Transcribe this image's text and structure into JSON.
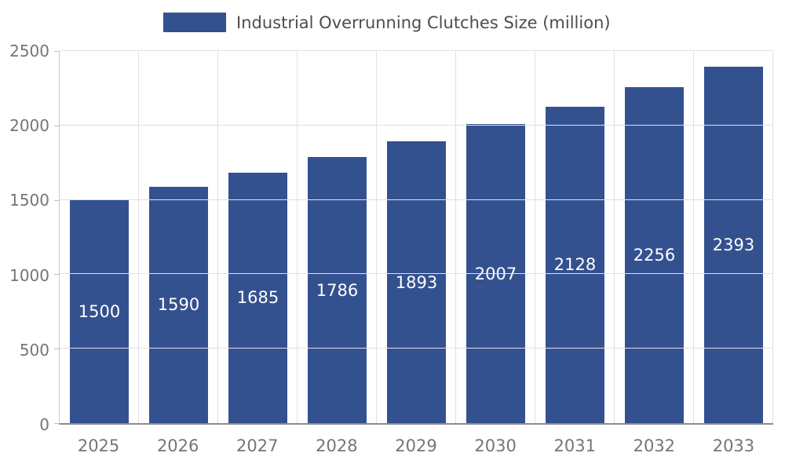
{
  "legend": {
    "label": "Industrial Overrunning Clutches Size (million)",
    "swatch_color": "#34518f"
  },
  "chart_data": {
    "type": "bar",
    "title": "Industrial Overrunning Clutches Size (million)",
    "categories": [
      "2025",
      "2026",
      "2027",
      "2028",
      "2029",
      "2030",
      "2031",
      "2032",
      "2033"
    ],
    "values": [
      1500,
      1590,
      1685,
      1786,
      1893,
      2007,
      2128,
      2256,
      2393
    ],
    "xlabel": "",
    "ylabel": "",
    "ylim": [
      0,
      2500
    ],
    "yticks": [
      0,
      500,
      1000,
      1500,
      2000,
      2500
    ],
    "bar_color": "#34518f",
    "value_label_color": "#ffffff",
    "grid": true,
    "legend_position": "top"
  }
}
